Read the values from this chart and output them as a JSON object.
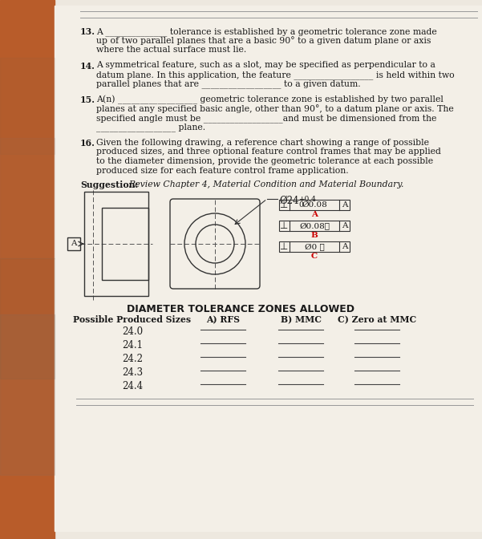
{
  "page_bg": "#ede8df",
  "white_page": "#f3efe7",
  "orange_bg": "#b85c2a",
  "text_color": "#1a1a1a",
  "red_color": "#cc0000",
  "gray_line": "#999999",
  "dark_line": "#333333",
  "q13_lines": [
    "A ______________ tolerance is established by a geometric tolerance zone made",
    "up of two parallel planes that are a basic 90° to a given datum plane or axis",
    "where the actual surface must lie."
  ],
  "q14_lines": [
    "A symmetrical feature, such as a slot, may be specified as perpendicular to a",
    "datum plane. In this application, the feature __________________ is held within two",
    "parallel planes that are __________________ to a given datum."
  ],
  "q15_lines": [
    "A(n) __________________ geometric tolerance zone is established by two parallel",
    "planes at any specified basic angle, other than 90°, to a datum plane or axis. The",
    "specified angle must be __________________and must be dimensioned from the",
    "__________________ plane."
  ],
  "q16_lines": [
    "Given the following drawing, a reference chart showing a range of possible",
    "produced sizes, and three optional feature control frames that may be applied",
    "to the diameter dimension, provide the geometric tolerance at each possible",
    "produced size for each feature control frame application."
  ],
  "suggestion_bold": "Suggestion:",
  "suggestion_italic": "Review Chapter 4, Material Condition and Material Boundary.",
  "table_title": "DIAMETER TOLERANCE ZONES ALLOWED",
  "col_headers": [
    "Possible Produced Sizes",
    "A) RFS",
    "B) MMC",
    "C) Zero at MMC"
  ],
  "rows": [
    "24.0",
    "24.1",
    "24.2",
    "24.3",
    "24.4"
  ]
}
